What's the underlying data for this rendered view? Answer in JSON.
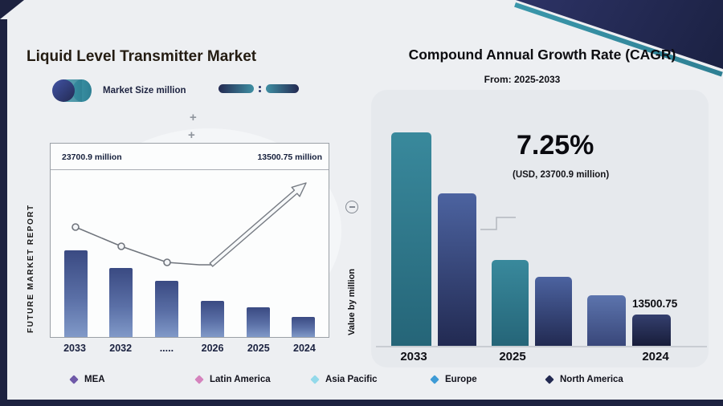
{
  "left": {
    "title": "Liquid Level Transmitter Market",
    "legend_label": "Market Size million",
    "top_left_value": "23700.9 million",
    "top_right_value": "13500.75 million",
    "side_label": "FUTURE MARKET REPORT"
  },
  "right": {
    "title": "Compound Annual Growth Rate (CAGR)",
    "subtitle": "From: 2025-2033",
    "cagr_value": "7.25%",
    "cagr_note": "(USD, 23700.9 million)",
    "value_axis_label": "Value by million",
    "bar_label": "13500.75"
  },
  "footer": {
    "legend": [
      {
        "label": "MEA",
        "color": "#6f59a8"
      },
      {
        "label": "Latin America",
        "color": "#d583bd"
      },
      {
        "label": "Asia Pacific",
        "color": "#93d9ea"
      },
      {
        "label": "Europe",
        "color": "#3e9bd6"
      },
      {
        "label": "North America",
        "color": "#232a52"
      }
    ]
  },
  "decor": {
    "plus": "+"
  },
  "colors": {
    "navy": "#1d2240",
    "teal": "#2e7f93",
    "bar_blue": "#3a4a82"
  },
  "chart_data": [
    {
      "type": "bar",
      "title": "Liquid Level Transmitter Market",
      "categories": [
        "2033",
        "2032",
        ".....",
        "2026",
        "2025",
        "2024"
      ],
      "series": [
        {
          "name": "Market Size million",
          "values": [
            23700.9,
            21000,
            19000,
            16000,
            15000,
            13500.75
          ]
        }
      ],
      "annotations": [
        "23700.9 million",
        "13500.75 million"
      ],
      "xlabel": "",
      "ylabel": "",
      "note": "Only 2033 (23700.9) and 2024 (13500.75) values labeled; intermediate values estimated from bar heights. Declining trend line with upward forecast arrow overlay.",
      "legend_position": "top"
    },
    {
      "type": "bar",
      "title": "Compound Annual Growth Rate (CAGR)",
      "subtitle": "From: 2025-2033",
      "categories": [
        "2033",
        "2025",
        "2024"
      ],
      "series": [
        {
          "name": "series-1",
          "values": [
            266,
            107,
            63
          ]
        },
        {
          "name": "series-2",
          "values": [
            190,
            86,
            39
          ]
        }
      ],
      "units": "relative height (stylized, not to scale)",
      "annotations": [
        "7.25%",
        "(USD, 23700.9 million)",
        "13500.75"
      ],
      "xlabel": "",
      "ylabel": "Value by million",
      "grid": false
    }
  ]
}
